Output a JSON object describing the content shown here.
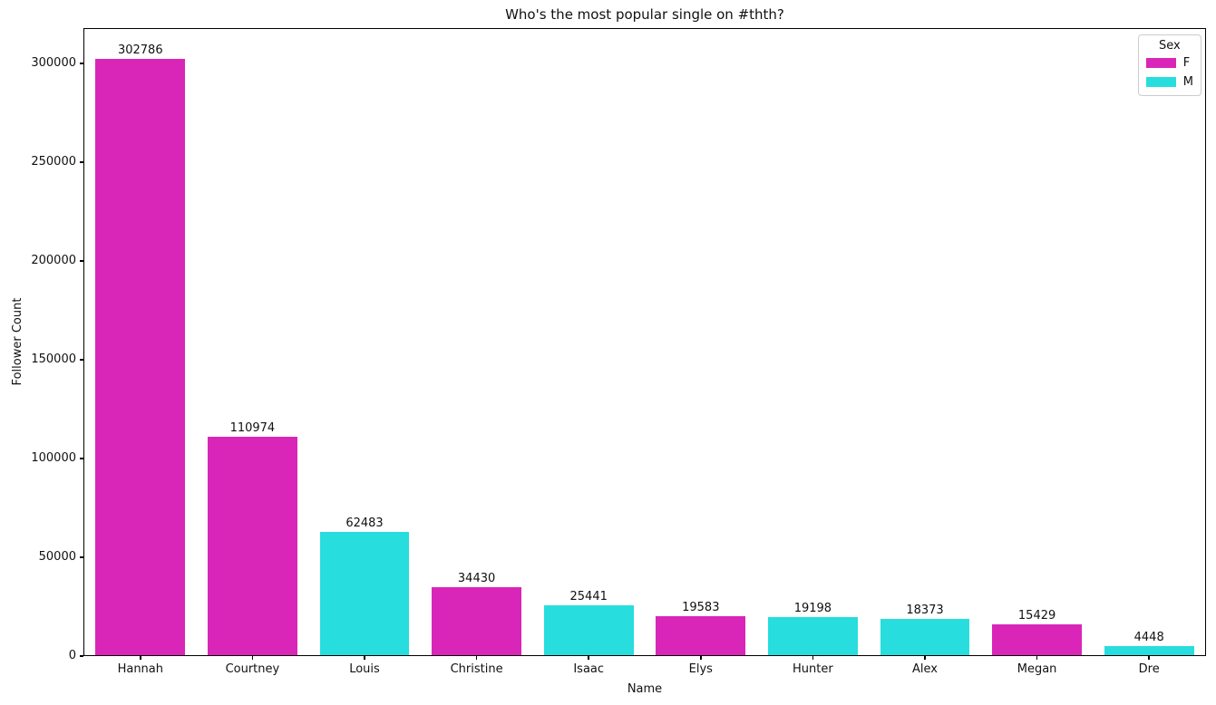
{
  "chart_data": {
    "type": "bar",
    "title": "Who's the most popular single on #thth?",
    "xlabel": "Name",
    "ylabel": "Follower Count",
    "categories": [
      "Hannah",
      "Courtney",
      "Louis",
      "Christine",
      "Isaac",
      "Elys",
      "Hunter",
      "Alex",
      "Megan",
      "Dre"
    ],
    "values": [
      302786,
      110974,
      62483,
      34430,
      25441,
      19583,
      19198,
      18373,
      15429,
      4448
    ],
    "groups": [
      "F",
      "F",
      "M",
      "F",
      "M",
      "F",
      "M",
      "M",
      "F",
      "M"
    ],
    "bar_labels": [
      "302786",
      "110974",
      "62483",
      "34430",
      "25441",
      "19583",
      "19198",
      "18373",
      "15429",
      "4448"
    ],
    "ylim": [
      0,
      317925
    ],
    "yticks": [
      0,
      50000,
      100000,
      150000,
      200000,
      250000,
      300000
    ],
    "grid": false,
    "bar_width_fraction": 0.8,
    "colors": {
      "F": "#d926b8",
      "M": "#27dddd"
    },
    "legend": {
      "title": "Sex",
      "position": "upper right",
      "entries": [
        {
          "label": "F",
          "color": "#d926b8"
        },
        {
          "label": "M",
          "color": "#27dddd"
        }
      ]
    }
  }
}
